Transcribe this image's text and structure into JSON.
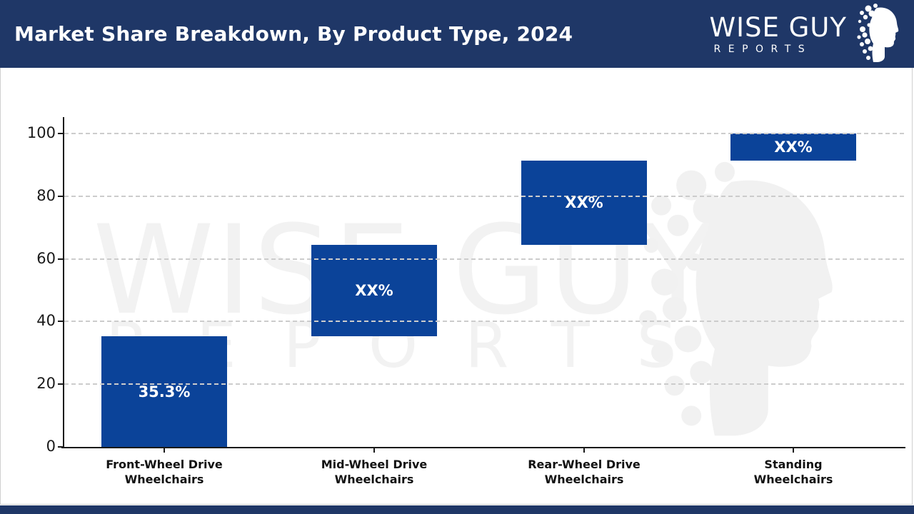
{
  "header": {
    "title": "Market Share Breakdown, By Product Type, 2024"
  },
  "brand": {
    "name": "WISE GUY",
    "sub": "REPORTS"
  },
  "watermark": {
    "line1": "WISE GUY",
    "line2": "REPORTS"
  },
  "chart_data": {
    "type": "bar",
    "subtype": "waterfall",
    "title": "Market Share Breakdown, By Product Type, 2024",
    "categories": [
      "Front-Wheel Drive Wheelchairs",
      "Mid-Wheel Drive Wheelchairs",
      "Rear-Wheel Drive Wheelchairs",
      "Standing Wheelchairs"
    ],
    "segments": [
      {
        "category": "Front-Wheel Drive Wheelchairs",
        "start": 0,
        "end": 35.3,
        "label": "35.3%"
      },
      {
        "category": "Mid-Wheel Drive Wheelchairs",
        "start": 35.3,
        "end": 64.5,
        "label": "XX%"
      },
      {
        "category": "Rear-Wheel Drive Wheelchairs",
        "start": 64.5,
        "end": 91.3,
        "label": "XX%"
      },
      {
        "category": "Standing Wheelchairs",
        "start": 91.3,
        "end": 100,
        "label": "XX%"
      }
    ],
    "y_ticks": [
      0,
      20,
      40,
      60,
      80,
      100
    ],
    "ylim": [
      0,
      105
    ],
    "xlabel": "",
    "ylabel": "",
    "legend": "none",
    "grid": "horizontal-dashed",
    "bar_color": "#0b4399",
    "bar_label_color": "#ffffff",
    "axis_color": "#1a1a1a",
    "grid_color": "#cccccc",
    "header_bg": "#1f3767",
    "watermark_color": "#f2f2f2"
  }
}
